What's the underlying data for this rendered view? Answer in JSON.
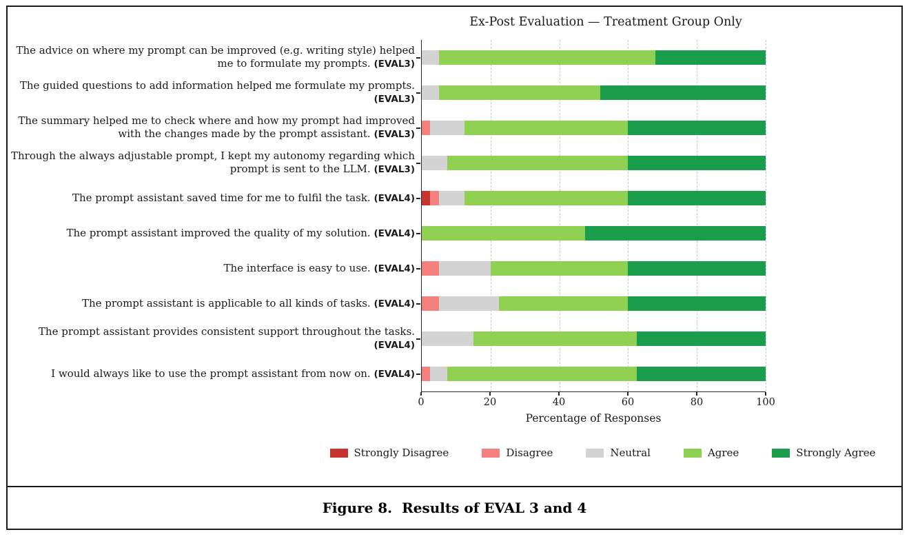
{
  "figure": {
    "caption_label": "Figure 8.",
    "caption_text": "Results of EVAL 3 and 4"
  },
  "chart_data": {
    "type": "bar",
    "orientation": "horizontal",
    "stacked": true,
    "title": "Ex-Post Evaluation — Treatment Group Only",
    "xlabel": "Percentage of Responses",
    "xlim": [
      0,
      100
    ],
    "xticks": [
      0,
      20,
      40,
      60,
      80,
      100
    ],
    "grid": "vertical-dashed",
    "legend_position": "bottom",
    "series": [
      {
        "name": "Strongly Disagree",
        "key": "strongly-disagree",
        "color": "#c7332d"
      },
      {
        "name": "Disagree",
        "key": "disagree",
        "color": "#f4817e"
      },
      {
        "name": "Neutral",
        "key": "neutral",
        "color": "#d3d3d3"
      },
      {
        "name": "Agree",
        "key": "agree",
        "color": "#90d052"
      },
      {
        "name": "Strongly Agree",
        "key": "strongly-agree",
        "color": "#1a9e4e"
      }
    ],
    "rows": [
      {
        "label": "The advice on where my prompt can be improved (e.g. writing style) helped me to formulate my prompts.",
        "tag": "(EVAL3)",
        "values": [
          0,
          0,
          5,
          63,
          32
        ]
      },
      {
        "label": "The guided questions to add information helped me formulate my prompts.",
        "tag": "(EVAL3)",
        "values": [
          0,
          0,
          5,
          47,
          48
        ]
      },
      {
        "label": "The summary helped me to check where and how my prompt had improved with the changes made by the prompt assistant.",
        "tag": "(EVAL3)",
        "values": [
          0,
          2.5,
          10,
          47.5,
          40
        ]
      },
      {
        "label": "Through the always adjustable prompt, I kept my autonomy regarding which prompt is sent to the LLM.",
        "tag": "(EVAL3)",
        "values": [
          0,
          0,
          7.5,
          52.5,
          40
        ]
      },
      {
        "label": "The prompt assistant saved time for me to fulfil the task.",
        "tag": "(EVAL4)",
        "values": [
          2.5,
          2.5,
          7.5,
          47.5,
          40
        ]
      },
      {
        "label": "The prompt assistant improved the quality of my solution.",
        "tag": "(EVAL4)",
        "values": [
          0,
          0,
          0,
          47.5,
          52.5
        ]
      },
      {
        "label": "The interface is easy to use.",
        "tag": "(EVAL4)",
        "values": [
          0,
          5,
          15,
          40,
          40
        ]
      },
      {
        "label": "The prompt assistant is applicable to all kinds of tasks.",
        "tag": "(EVAL4)",
        "values": [
          0,
          5,
          17.5,
          37.5,
          40
        ]
      },
      {
        "label": "The prompt assistant provides consistent support throughout the tasks.",
        "tag": "(EVAL4)",
        "values": [
          0,
          0,
          15,
          47.5,
          37.5
        ]
      },
      {
        "label": "I would always like to use the prompt assistant from now on.",
        "tag": "(EVAL4)",
        "values": [
          0,
          2.5,
          5,
          55,
          37.5
        ]
      }
    ]
  }
}
